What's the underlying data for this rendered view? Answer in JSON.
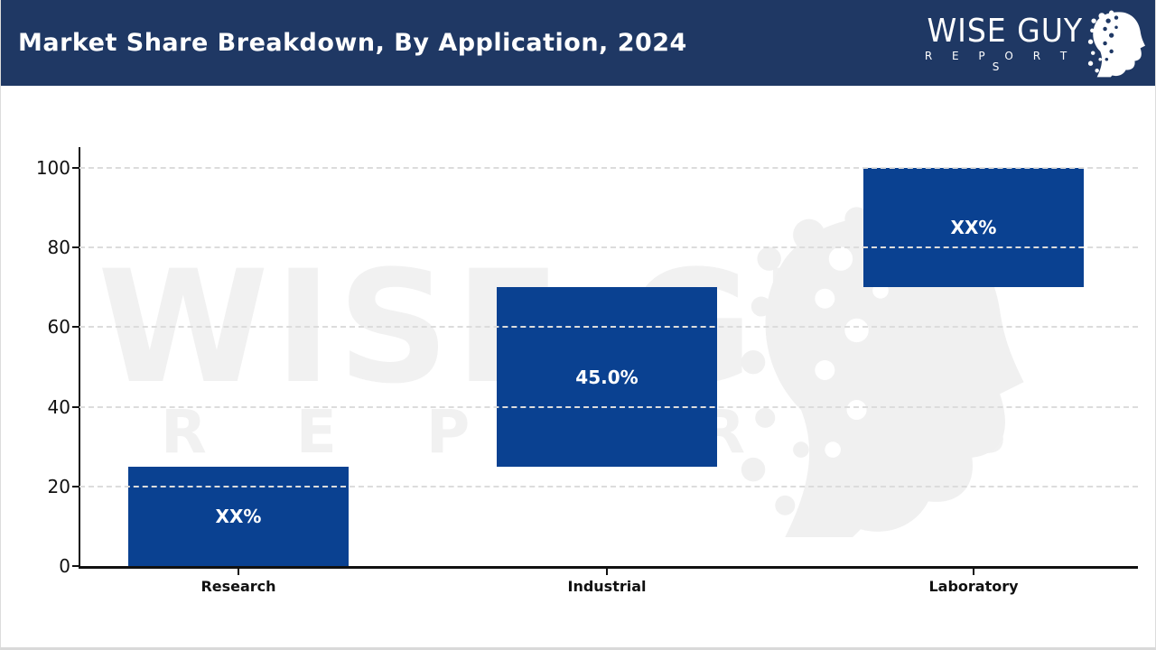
{
  "header": {
    "title": "Market Share Breakdown, By Application, 2024",
    "bg_color": "#1f3864",
    "logo": {
      "line1": "WISE GUY",
      "line2": "R E P O R T S"
    }
  },
  "watermark": {
    "line1": "WISE GUY",
    "line2": "R E P O R T S"
  },
  "chart_data": {
    "type": "bar",
    "subtype": "floating-range-bars",
    "title": "Market Share Breakdown, By Application, 2024",
    "categories": [
      "Research",
      "Industrial",
      "Laboratory"
    ],
    "bars": [
      {
        "category": "Research",
        "start": 0,
        "end": 25,
        "label": "XX%"
      },
      {
        "category": "Industrial",
        "start": 25,
        "end": 70,
        "label": "45.0%"
      },
      {
        "category": "Laboratory",
        "start": 70,
        "end": 100,
        "label": "XX%"
      }
    ],
    "y_ticks": [
      0,
      20,
      40,
      60,
      80,
      100
    ],
    "ylim": [
      0,
      105
    ],
    "xlabel": "",
    "ylabel": "",
    "grid": "horizontal-dashed",
    "legend": "none",
    "bar_color": "#0a4191",
    "bar_label_color": "#ffffff",
    "axis_color": "#111111",
    "grid_color": "#dcdcdc"
  }
}
